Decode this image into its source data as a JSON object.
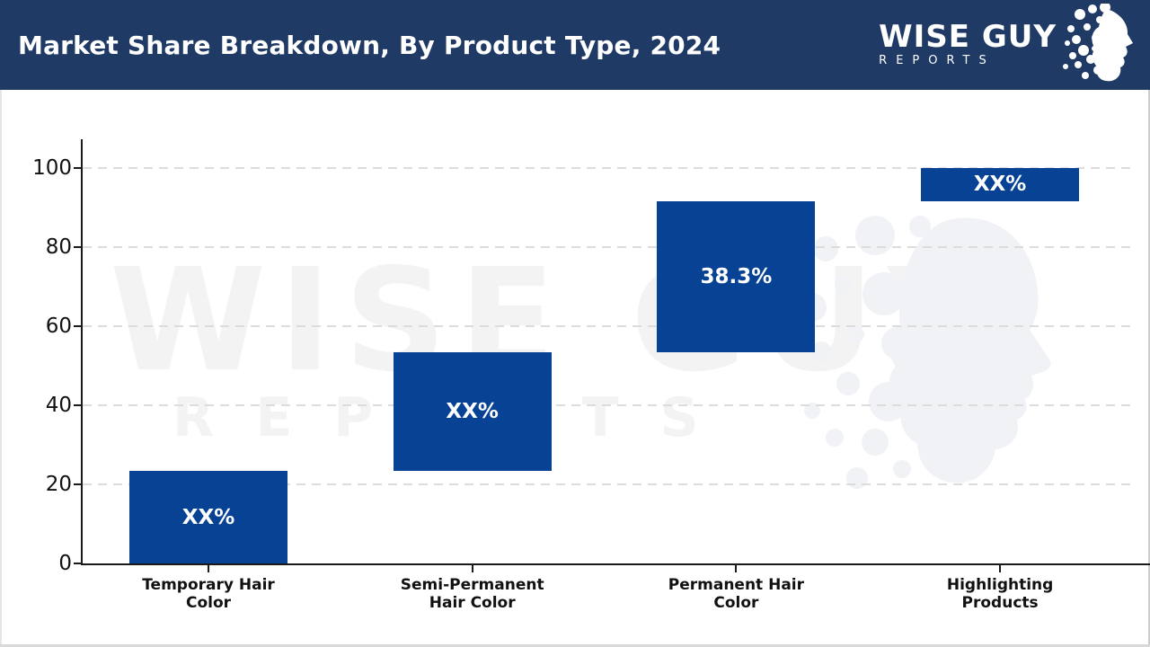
{
  "header": {
    "title": "Market Share Breakdown, By Product Type, 2024",
    "logo": {
      "line1": "WISE GUY",
      "line2": "REPORTS"
    }
  },
  "watermark": {
    "line1": "WISE GUY",
    "line2": "REPORTS"
  },
  "colors": {
    "header_bg": "#203a66",
    "bar": "#084294",
    "gridline": "#dcdcdc",
    "axis": "#1a1a1a",
    "watermark": "#f3f3f4",
    "label_text": "#ffffff"
  },
  "chart_data": {
    "type": "bar",
    "subtype": "waterfall",
    "title": "Market Share Breakdown, By Product Type, 2024",
    "xlabel": "",
    "ylabel": "",
    "categories": [
      "Temporary Hair Color",
      "Semi-Permanent Hair Color",
      "Permanent Hair Color",
      "Highlighting Products"
    ],
    "segments": [
      {
        "category": "Temporary Hair Color",
        "label": "XX%",
        "start": 0,
        "end": 23.3
      },
      {
        "category": "Semi-Permanent Hair Color",
        "label": "XX%",
        "start": 23.3,
        "end": 53.3
      },
      {
        "category": "Permanent Hair Color",
        "label": "38.3%",
        "start": 53.3,
        "end": 91.6
      },
      {
        "category": "Highlighting Products",
        "label": "XX%",
        "start": 91.6,
        "end": 100
      }
    ],
    "yticks": [
      0,
      20,
      40,
      60,
      80,
      100
    ],
    "ylim": [
      0,
      107
    ],
    "grid": "horizontal-dashed",
    "legend": "none",
    "bar_color": "#084294"
  }
}
